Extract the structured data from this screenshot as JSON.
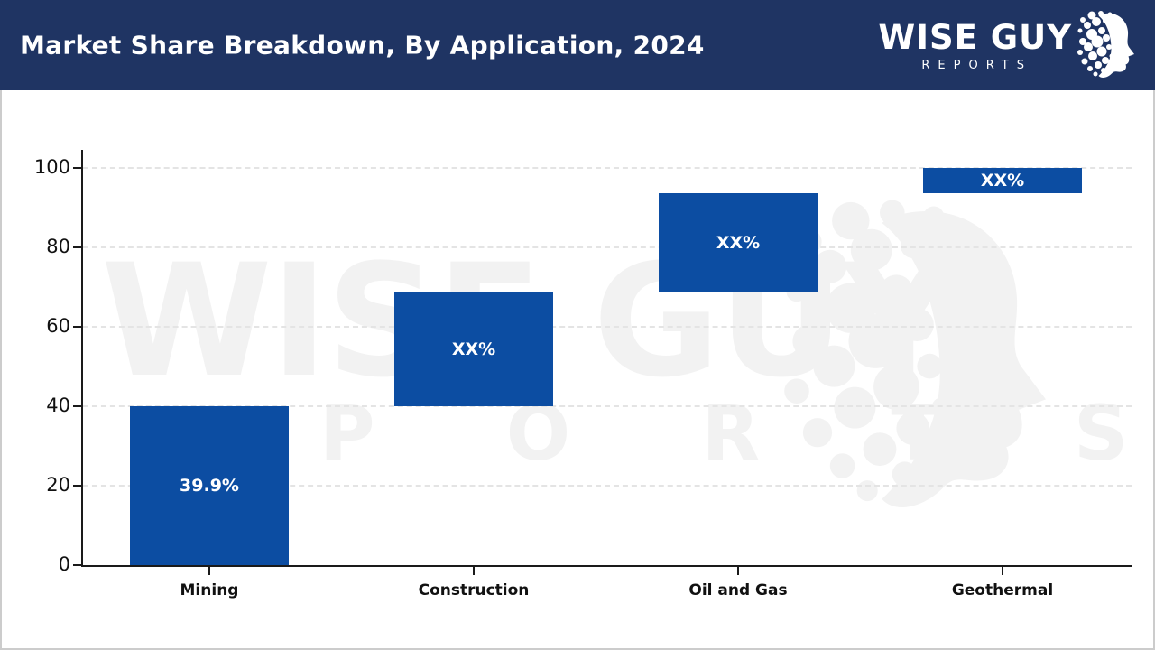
{
  "header": {
    "title": "Market Share Breakdown, By Application, 2024",
    "logo": {
      "wordmark": "WISE GUY",
      "subtext": "REPORTS"
    }
  },
  "watermark": {
    "line1": "WISE GUY.",
    "line2": "P O R T S"
  },
  "colors": {
    "header_bg": "#1f3463",
    "bar_fill": "#0c4da2",
    "bar_label": "#ffffff",
    "axis": "#1a1a1a",
    "gridline": "#e4e4e4",
    "watermark": "#f2f2f2",
    "frame_border": "#cccccc",
    "text": "#111111"
  },
  "chart_data": {
    "type": "bar",
    "subtype": "waterfall",
    "title": "Market Share Breakdown, By Application, 2024",
    "unit": "%",
    "categories": [
      "Mining",
      "Construction",
      "Oil and Gas",
      "Geothermal"
    ],
    "segments": [
      {
        "category": "Mining",
        "start": 0,
        "end": 39.9,
        "value": 39.9,
        "label": "39.9%"
      },
      {
        "category": "Construction",
        "start": 39.9,
        "end": 68.8,
        "value": 28.9,
        "label": "XX%"
      },
      {
        "category": "Oil and Gas",
        "start": 68.8,
        "end": 93.6,
        "value": 24.8,
        "label": "XX%"
      },
      {
        "category": "Geothermal",
        "start": 93.6,
        "end": 100,
        "value": 6.4,
        "label": "XX%"
      }
    ],
    "yticks": [
      0,
      20,
      40,
      60,
      80,
      100
    ],
    "ylim": [
      0,
      104.5
    ],
    "grid": "horizontal-dashed",
    "legend": "none"
  }
}
